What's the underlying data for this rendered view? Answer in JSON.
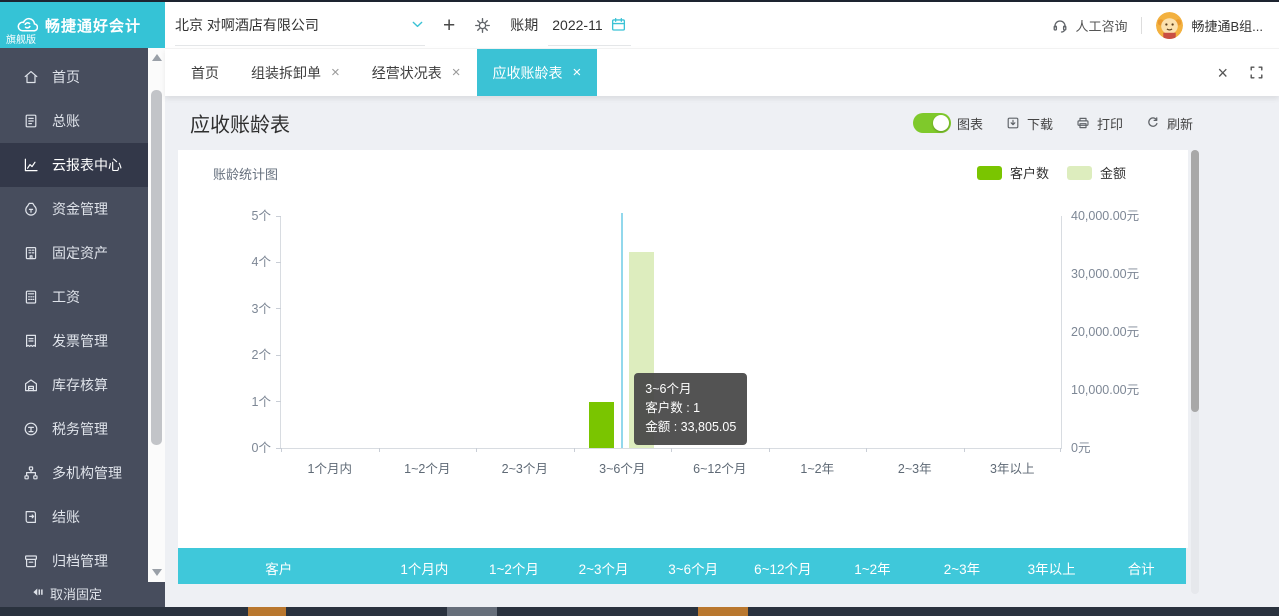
{
  "app": {
    "logo_text": "畅捷通好会计",
    "edition_badge": "旗舰版"
  },
  "icons": {
    "close": "×",
    "plus": "+"
  },
  "topbar": {
    "company": "北京 对啊酒店有限公司",
    "period_label": "账期",
    "period_value": "2022-11",
    "support_label": "人工咨询",
    "user_name": "畅捷通B组..."
  },
  "tabs": {
    "items": [
      {
        "label": "首页"
      },
      {
        "label": "组装拆卸单"
      },
      {
        "label": "经营状况表"
      },
      {
        "label": "应收账龄表"
      }
    ]
  },
  "sidebar": {
    "items": [
      {
        "label": "首页",
        "icon": "home-icon"
      },
      {
        "label": "总账",
        "icon": "ledger-icon"
      },
      {
        "label": "云报表中心",
        "icon": "chart-report-icon",
        "active": true
      },
      {
        "label": "资金管理",
        "icon": "money-bag-icon"
      },
      {
        "label": "固定资产",
        "icon": "building-icon"
      },
      {
        "label": "工资",
        "icon": "calculator-icon"
      },
      {
        "label": "发票管理",
        "icon": "receipt-icon"
      },
      {
        "label": "库存核算",
        "icon": "warehouse-icon"
      },
      {
        "label": "税务管理",
        "icon": "tax-badge-icon"
      },
      {
        "label": "多机构管理",
        "icon": "org-chart-icon"
      },
      {
        "label": "结账",
        "icon": "closing-book-icon"
      },
      {
        "label": "归档管理",
        "icon": "archive-box-icon"
      }
    ],
    "unpin_label": "取消固定"
  },
  "page": {
    "title": "应收账龄表",
    "chart_toggle_label": "图表",
    "download_label": "下载",
    "print_label": "打印",
    "refresh_label": "刷新"
  },
  "chart_data": {
    "type": "bar",
    "title": "账龄统计图",
    "categories": [
      "1个月内",
      "1~2个月",
      "2~3个月",
      "3~6个月",
      "6~12个月",
      "1~2年",
      "2~3年",
      "3年以上"
    ],
    "series": [
      {
        "name": "客户数",
        "axis": "left",
        "color": "#7ac500",
        "values": [
          0,
          0,
          0,
          1,
          0,
          0,
          0,
          0
        ]
      },
      {
        "name": "金额",
        "axis": "right",
        "color": "#ddedbe",
        "values": [
          0,
          0,
          0,
          33805.05,
          0,
          0,
          0,
          0
        ]
      }
    ],
    "left_axis": {
      "max": 5,
      "ticks": [
        "0个",
        "1个",
        "2个",
        "3个",
        "4个",
        "5个"
      ]
    },
    "right_axis": {
      "max": 40000,
      "ticks": [
        "0元",
        "10,000.00元",
        "20,000.00元",
        "30,000.00元",
        "40,000.00元"
      ]
    },
    "legend_position": "top-right",
    "grid": false,
    "tooltip": {
      "category": "3~6个月",
      "line1": "客户数 : 1",
      "line2": "金额 : 33,805.05"
    }
  },
  "table": {
    "headers": [
      "客户",
      "1个月内",
      "1~2个月",
      "2~3个月",
      "3~6个月",
      "6~12个月",
      "1~2年",
      "2~3年",
      "3年以上",
      "合计"
    ]
  },
  "colors": {
    "accent_cyan": "#3bc2d5",
    "table_header_cyan": "#3fc8da",
    "toggle_green": "#7fc92b",
    "bar_green": "#7ac500",
    "bar_light_green": "#ddedbe",
    "sidebar_bg": "#474d5d",
    "tooltip_bg": "#484848"
  }
}
